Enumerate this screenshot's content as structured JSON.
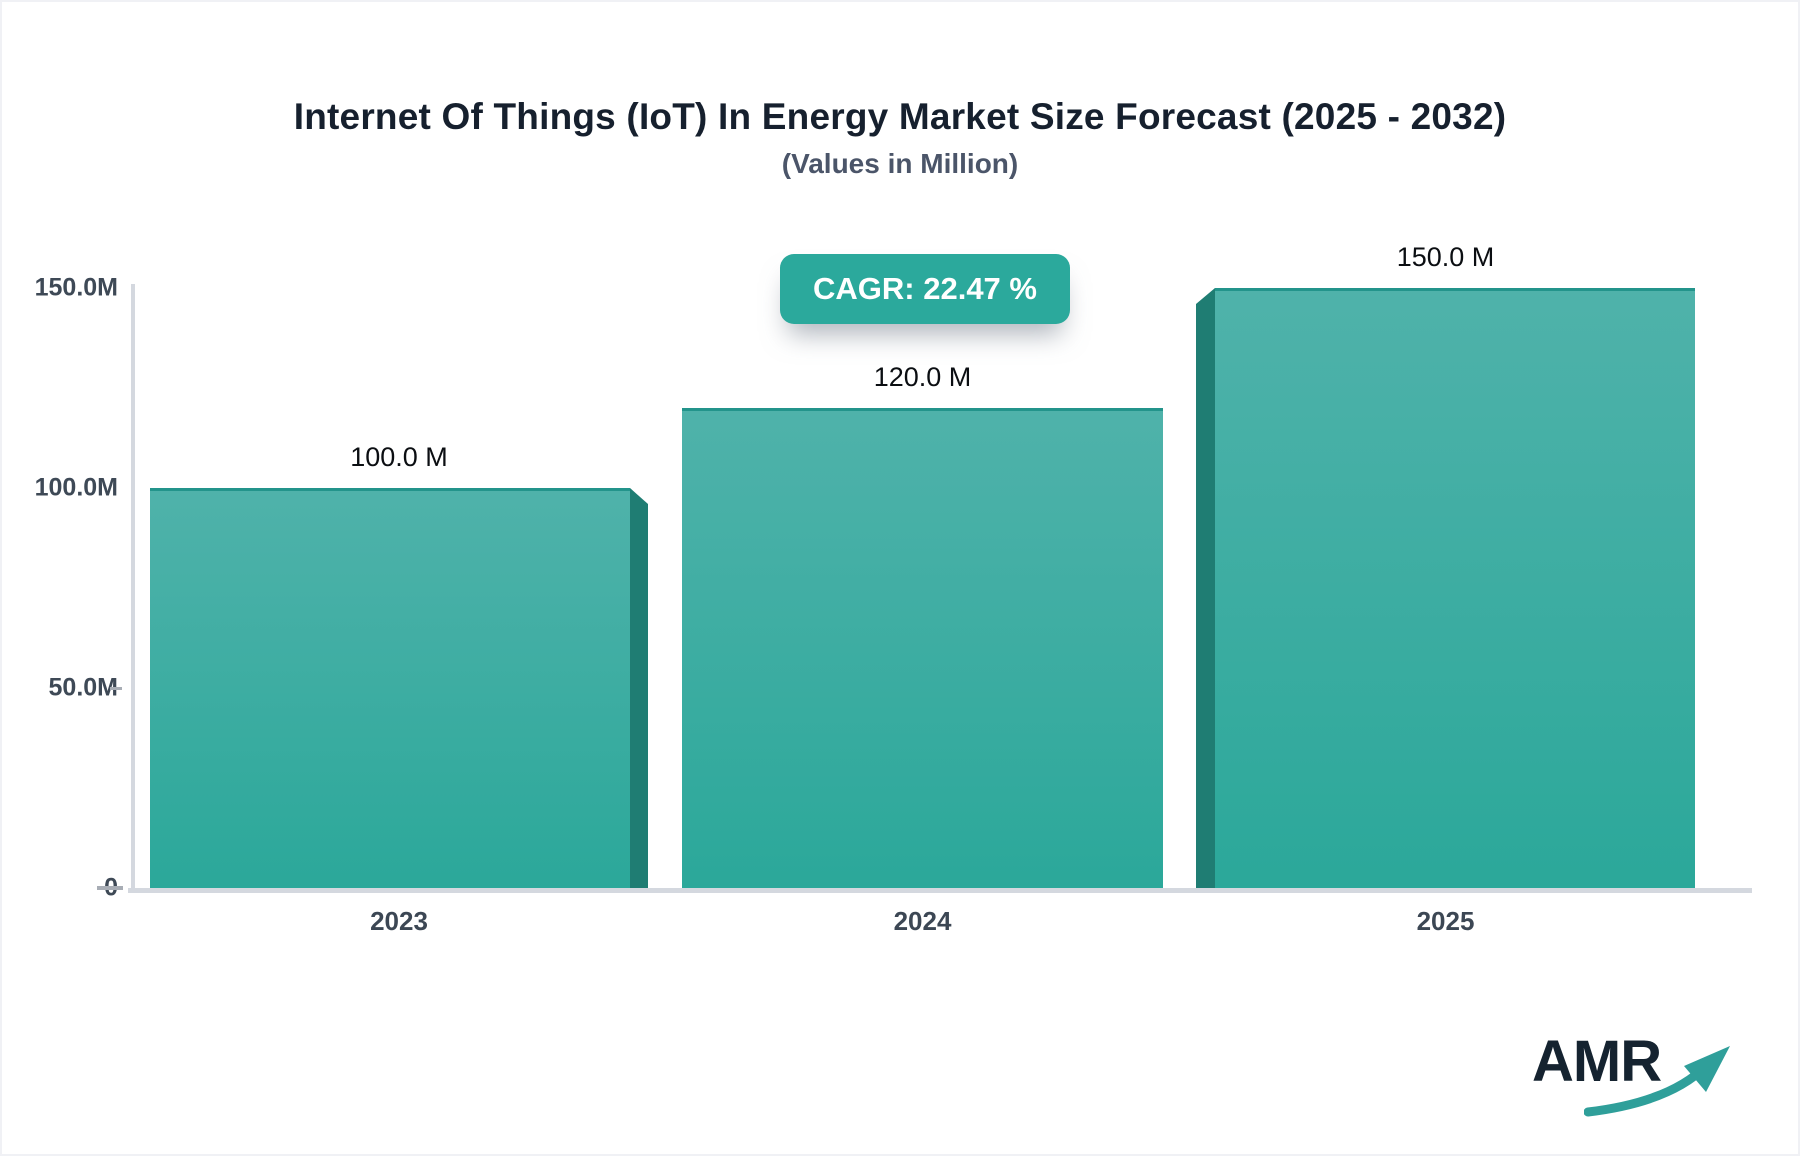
{
  "header": {
    "title": "Internet Of Things (IoT) In Energy Market Size Forecast (2025 - 2032)",
    "subtitle": "(Values in Million)"
  },
  "cagr_badge": {
    "label": "CAGR: 22.47 %"
  },
  "logo": {
    "text": "AMR"
  },
  "colors": {
    "accent_teal": "#2ba99c",
    "bar_gradient_top": "#4fb2aa",
    "bar_gradient_bottom": "#2ba89a",
    "bar_top_edge": "#23948b",
    "bar_side_shadow": "#1f7d73",
    "axis_line": "#d4d8df",
    "axis_label_text": "#3e4956",
    "title_text": "#16202e",
    "subtitle_text": "#4b5569",
    "badge_text": "#ffffff"
  },
  "chart_data": {
    "type": "bar",
    "title": "Internet Of Things (IoT) In Energy Market Size Forecast (2025 - 2032)",
    "subtitle": "(Values in Million)",
    "unit": "Million (M)",
    "categories": [
      "2023",
      "2024",
      "2025"
    ],
    "values": [
      100,
      120,
      150
    ],
    "bar_labels": [
      "100.0 M",
      "120.0 M",
      "150.0 M"
    ],
    "ylim": [
      0,
      150
    ],
    "yticks": [
      {
        "label": "150.0M",
        "value": 150
      },
      {
        "label": "100.0M",
        "value": 100
      },
      {
        "label": "50.0M",
        "value": 50
      },
      {
        "label": "0",
        "value": 0
      }
    ],
    "grid": false,
    "legend": false,
    "annotations": [
      {
        "name": "cagr-badge",
        "text": "CAGR: 22.47 %"
      }
    ]
  }
}
